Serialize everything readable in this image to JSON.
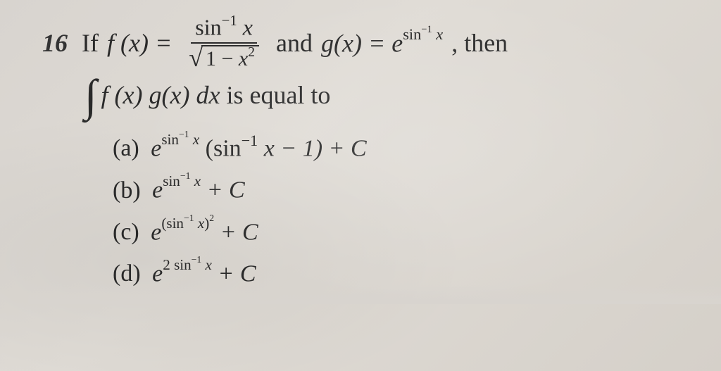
{
  "question": {
    "number": "16",
    "if_text": "If",
    "fx_lhs": "f (x) =",
    "frac_num_parts": {
      "fn": "sin",
      "exp": "−1",
      "var": "x"
    },
    "frac_den_parts": {
      "sqrt_of_left": "1 − ",
      "var": "x",
      "exp": "2"
    },
    "and_text": "and",
    "gx_lhs": "g(x) = ",
    "gx_base": "e",
    "gx_exp_fn": "sin",
    "gx_exp_sup": "−1",
    "gx_exp_var": "x",
    "then_text": ", then",
    "integral_expr_f": "f (x)",
    "integral_expr_g": "g(x)",
    "integral_dx": "dx",
    "integral_tail": "is equal to"
  },
  "options": {
    "a": {
      "label": "(a)",
      "base": "e",
      "exp_fn": "sin",
      "exp_sup": "−1",
      "exp_var": "x",
      "tail_open": "(",
      "tail_fn": "sin",
      "tail_sup": "−1",
      "tail_rest": "x − 1) + C"
    },
    "b": {
      "label": "(b)",
      "base": "e",
      "exp_fn": "sin",
      "exp_sup": "−1",
      "exp_var": "x",
      "tail": " + C"
    },
    "c": {
      "label": "(c)",
      "base": "e",
      "exp_open": "(",
      "exp_fn": "sin",
      "exp_sup": "−1",
      "exp_var": "x",
      "exp_close": ")",
      "exp_outer_sup": "2",
      "tail": " + C"
    },
    "d": {
      "label": "(d)",
      "base": "e",
      "exp_coef": "2 ",
      "exp_fn": "sin",
      "exp_sup": "−1",
      "exp_var": "x",
      "tail": " + C"
    }
  },
  "colors": {
    "text": "#2a2a2a",
    "background": "#d8d4cf"
  },
  "typography": {
    "body_fontsize_pt": 28,
    "qnum_fontsize_pt": 28,
    "font_family": "Times New Roman"
  }
}
